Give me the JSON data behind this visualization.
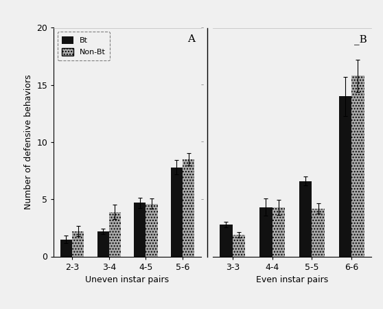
{
  "panel_A_categories": [
    "2-3",
    "3-4",
    "4-5",
    "5-6"
  ],
  "panel_B_categories": [
    "3-3",
    "4-4",
    "5-5",
    "6-6"
  ],
  "bt_A": [
    1.5,
    2.2,
    4.7,
    7.8
  ],
  "nonbt_A": [
    2.2,
    3.9,
    4.6,
    8.5
  ],
  "bt_B": [
    2.8,
    4.3,
    6.6,
    14.0
  ],
  "nonbt_B": [
    1.9,
    4.3,
    4.2,
    15.8
  ],
  "bt_A_err": [
    0.35,
    0.25,
    0.45,
    0.65
  ],
  "nonbt_A_err": [
    0.45,
    0.65,
    0.45,
    0.55
  ],
  "bt_B_err": [
    0.25,
    0.75,
    0.4,
    1.7
  ],
  "nonbt_B_err": [
    0.25,
    0.65,
    0.45,
    1.4
  ],
  "ylabel": "Number of defensive behaviors",
  "xlabel_A": "Uneven instar pairs",
  "xlabel_B": "Even instar pairs",
  "ylim": [
    0,
    20
  ],
  "yticks": [
    0,
    5,
    10,
    15,
    20
  ],
  "bt_color": "#111111",
  "nonbt_color": "#aaaaaa",
  "nonbt_hatch": "....",
  "bar_width": 0.32,
  "label_A": "A",
  "label_B": "_B",
  "legend_bt": "Bt",
  "legend_nonbt": "Non-Bt",
  "background_color": "#f0f0f0"
}
